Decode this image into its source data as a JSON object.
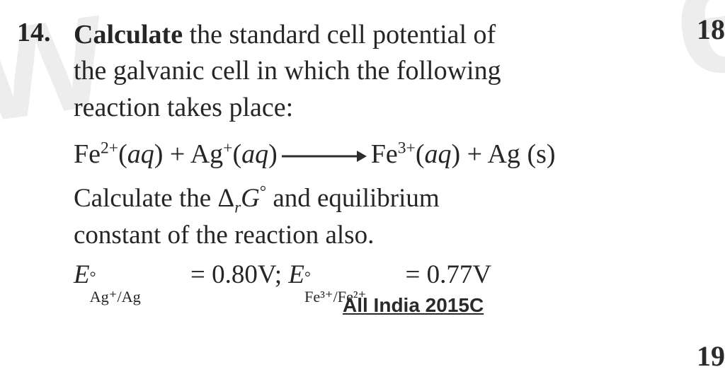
{
  "question_number": "14.",
  "prompt_line1_bold": "Calculate",
  "prompt_line1_rest": " the standard cell potential of",
  "prompt_line2": "the galvanic cell in which the following",
  "prompt_line3": "reaction takes place:",
  "reaction": {
    "lhs1_elem": "Fe",
    "lhs1_charge": "2+",
    "aq1": "(",
    "aq1_it": "aq",
    "aq1_close": ") + ",
    "lhs2_elem": "Ag",
    "lhs2_charge": "+",
    "aq2": "(",
    "aq2_it": "aq",
    "aq2_close": ")",
    "rhs1_elem": "Fe",
    "rhs1_charge": "3+",
    "aq3": "(",
    "aq3_it": "aq",
    "aq3_close": ") + ",
    "rhs2_elem": "Ag",
    "rhs2_state": " (s)"
  },
  "prompt2_line1a": "Calculate the ",
  "prompt2_delta": "Δ",
  "prompt2_sub": "r",
  "prompt2_G": "G",
  "prompt2_deg": "°",
  "prompt2_line1b": " and equilibrium",
  "prompt2_line2": "constant of the reaction also.",
  "e1_E": "E",
  "e1_deg": "°",
  "e1_sub": "Ag⁺/Ag",
  "e1_eq": " = 0.80V; ",
  "e2_E": "E",
  "e2_deg": "°",
  "e2_sub": "Fe³⁺/Fe²⁺",
  "e2_eq": " = 0.77V",
  "source": "All India 2015C",
  "side_number_top": "18",
  "side_number_bottom": "19",
  "colors": {
    "text": "#2d2d2d",
    "background": "#ffffff",
    "watermark": "rgba(0,0,0,0.07)"
  },
  "fontsize_main": 38,
  "fontsize_side": 40,
  "fontsize_source": 28
}
